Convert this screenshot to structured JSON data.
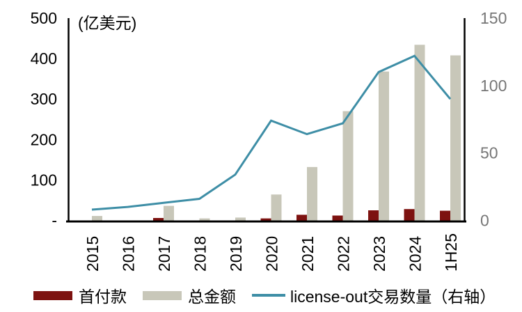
{
  "chart_data": {
    "type": "bar",
    "subtype": "grouped-bars-with-line-overlay",
    "categories": [
      "2015",
      "2016",
      "2017",
      "2018",
      "2019",
      "2020",
      "2021",
      "2022",
      "2023",
      "2024",
      "1H25"
    ],
    "series": [
      {
        "name": "首付款",
        "type": "bar",
        "axis": "left",
        "color": "#7D1210",
        "values": [
          0,
          0,
          6,
          0,
          0,
          5,
          14,
          12,
          25,
          28,
          24
        ]
      },
      {
        "name": "总金额",
        "type": "bar",
        "axis": "left",
        "color": "#C8C7B9",
        "values": [
          11,
          0,
          36,
          5,
          7,
          64,
          132,
          270,
          368,
          434,
          408
        ]
      },
      {
        "name": "license-out交易数量（右轴）",
        "type": "line",
        "axis": "right",
        "color": "#3E8EA6",
        "values": [
          8,
          10,
          13,
          16,
          34,
          74,
          64,
          72,
          110,
          122,
          90
        ]
      }
    ],
    "left_axis": {
      "title": "(亿美元)",
      "min": 0,
      "max": 500,
      "tick_labels": [
        "500",
        "400",
        "300",
        "200",
        "100",
        "-"
      ],
      "tick_values": [
        500,
        400,
        300,
        200,
        100,
        0
      ]
    },
    "right_axis": {
      "min": 0,
      "max": 150,
      "tick_labels": [
        "150",
        "100",
        "50",
        "0"
      ],
      "tick_values": [
        150,
        100,
        50,
        0
      ]
    },
    "grid": "off",
    "legend_position": "bottom-left",
    "colors": {
      "axis_line": "#000000",
      "left_tick_text": "#000000",
      "right_tick_text": "#767676",
      "background": "#FFFFFF"
    }
  }
}
